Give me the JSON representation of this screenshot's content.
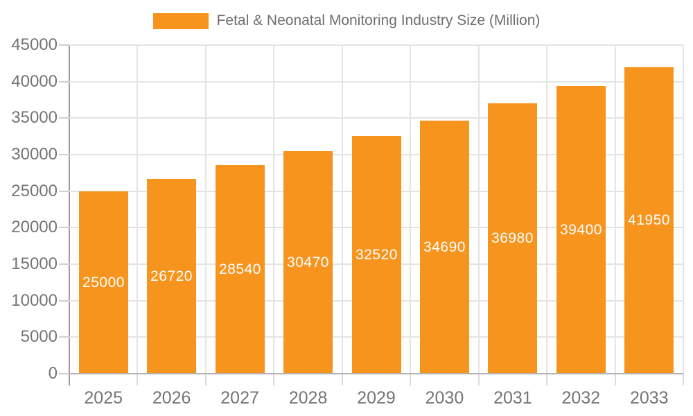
{
  "chart_data": {
    "type": "bar",
    "title": "Fetal & Neonatal Monitoring Industry Size (Million)",
    "legend": {
      "position": "top",
      "label": "Fetal & Neonatal Monitoring Industry Size (Million)"
    },
    "categories": [
      "2025",
      "2026",
      "2027",
      "2028",
      "2029",
      "2030",
      "2031",
      "2032",
      "2033"
    ],
    "values": [
      25000,
      26720,
      28540,
      30470,
      32520,
      34690,
      36980,
      39400,
      41950
    ],
    "bar_value_labels": [
      "25000",
      "26720",
      "28540",
      "30470",
      "32520",
      "34690",
      "36980",
      "39400",
      "41950"
    ],
    "xlabel": "",
    "ylabel": "",
    "ylim": [
      0,
      45000
    ],
    "yticks": [
      0,
      5000,
      10000,
      15000,
      20000,
      25000,
      30000,
      35000,
      40000,
      45000
    ],
    "ytick_labels": [
      "0",
      "5000",
      "10000",
      "15000",
      "20000",
      "25000",
      "30000",
      "35000",
      "40000",
      "45000"
    ],
    "grid": true,
    "colors": {
      "bar": "#f7941e",
      "bar_label": "#ffffff",
      "axis_text": "#757575",
      "legend_text": "#6e6e6e",
      "gridline": "#e4e4e4",
      "y_axis_line": "#9e9e9e",
      "x_axis_line": "#b3b3b3",
      "y_tick": "#cfcfcf",
      "x_tick": "#dcdcdc",
      "background": "#ffffff"
    }
  }
}
